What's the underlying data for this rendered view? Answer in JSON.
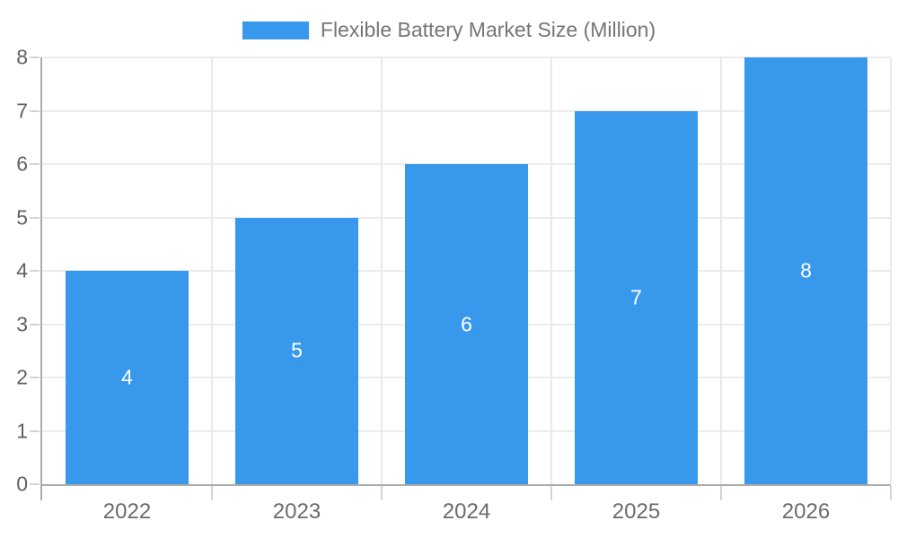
{
  "legend": {
    "label": "Flexible Battery Market Size (Million)"
  },
  "colors": {
    "bar": "#3899EC",
    "bar_label": "#FFFFFF",
    "grid_horizontal": "#ECECEC",
    "grid_vertical": "#E9E9E9",
    "axis_line": "#ABABAB",
    "tick": "#D4D4D4",
    "y_label_text": "#616161",
    "x_label_text": "#6B6B6B",
    "legend_text": "#757575",
    "background": "#FFFFFF"
  },
  "chart_data": {
    "type": "bar",
    "title": "Flexible Battery Market Size (Million)",
    "categories": [
      "2022",
      "2023",
      "2024",
      "2025",
      "2026"
    ],
    "values": [
      4,
      5,
      6,
      7,
      8
    ],
    "series": [
      {
        "name": "Flexible Battery Market Size (Million)",
        "values": [
          4,
          5,
          6,
          7,
          8
        ]
      }
    ],
    "bar_value_labels": [
      "4",
      "5",
      "6",
      "7",
      "8"
    ],
    "xlabel": "",
    "ylabel": "",
    "ylim": [
      0,
      8
    ],
    "yticks": [
      0,
      1,
      2,
      3,
      4,
      5,
      6,
      7,
      8
    ],
    "grid": true,
    "legend_position": "top"
  }
}
